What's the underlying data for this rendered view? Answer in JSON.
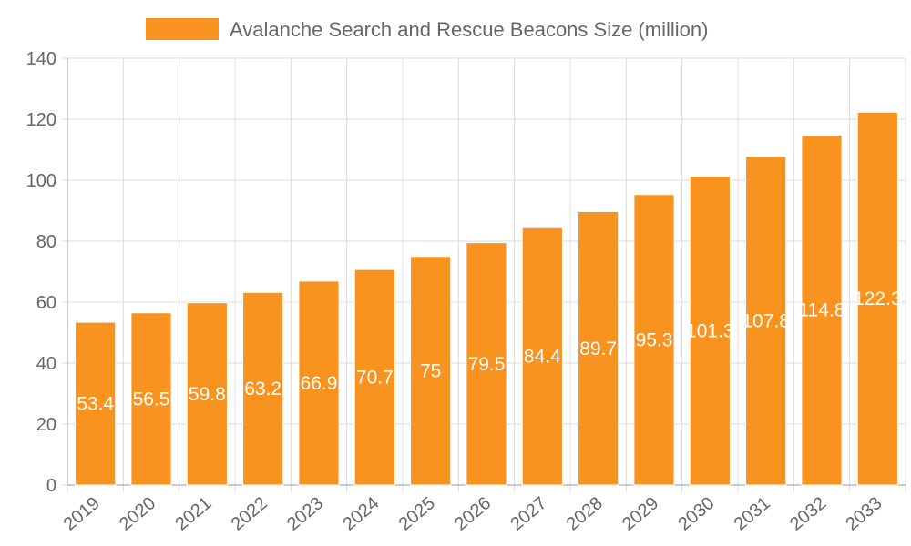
{
  "chart_data": {
    "type": "bar",
    "categories": [
      "2019",
      "2020",
      "2021",
      "2022",
      "2023",
      "2024",
      "2025",
      "2026",
      "2027",
      "2028",
      "2029",
      "2030",
      "2031",
      "2032",
      "2033"
    ],
    "series": [
      {
        "name": "Avalanche Search and Rescue Beacons Size (million)",
        "values": [
          53.4,
          56.5,
          59.8,
          63.2,
          66.9,
          70.7,
          75,
          79.5,
          84.4,
          89.7,
          95.3,
          101.3,
          107.8,
          114.8,
          122.3
        ],
        "color": "#f7931e"
      }
    ],
    "title": "",
    "xlabel": "",
    "ylabel": "",
    "ylim": [
      0,
      140
    ],
    "y_ticks": [
      0,
      20,
      40,
      60,
      80,
      100,
      120,
      140
    ],
    "grid": true,
    "legend_position": "top",
    "data_labels": true
  }
}
